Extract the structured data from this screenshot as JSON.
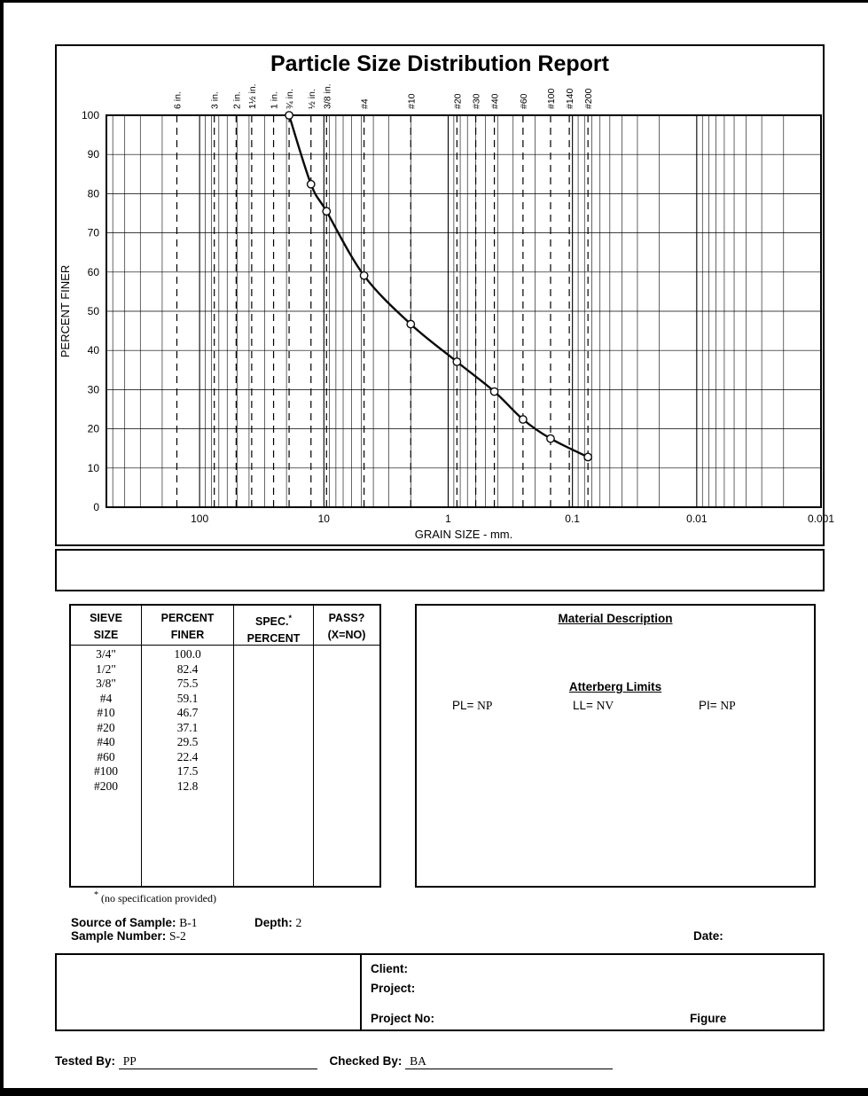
{
  "title": "Particle Size Distribution Report",
  "chart_data": {
    "type": "line",
    "title": "Particle Size Distribution Report",
    "xlabel": "GRAIN SIZE - mm.",
    "ylabel": "PERCENT FINER",
    "x_scale": "log",
    "x_log_range_left_to_right": [
      2.75,
      -3
    ],
    "x_tick_values": [
      100,
      10,
      1,
      0.1,
      0.01,
      0.001
    ],
    "x_tick_labels": [
      "100",
      "10",
      "1",
      "0.1",
      "0.01",
      "0.001"
    ],
    "y_ticks": [
      0,
      10,
      20,
      30,
      40,
      50,
      60,
      70,
      80,
      90,
      100
    ],
    "ylim": [
      0,
      100
    ],
    "grid": true,
    "marker": "open-circle",
    "line_color": "#000000",
    "sieve_lines": [
      {
        "label": "6 in.",
        "mm": 152.4
      },
      {
        "label": "3 in.",
        "mm": 76.2
      },
      {
        "label": "2 in.",
        "mm": 50.8
      },
      {
        "label": "1½ in.",
        "mm": 38.1
      },
      {
        "label": "1 in.",
        "mm": 25.4
      },
      {
        "label": "¾ in.",
        "mm": 19.05
      },
      {
        "label": "½ in.",
        "mm": 12.7
      },
      {
        "label": "3/8 in.",
        "mm": 9.525
      },
      {
        "label": "#4",
        "mm": 4.75
      },
      {
        "label": "#10",
        "mm": 2.0
      },
      {
        "label": "#20",
        "mm": 0.85
      },
      {
        "label": "#30",
        "mm": 0.6
      },
      {
        "label": "#40",
        "mm": 0.425
      },
      {
        "label": "#60",
        "mm": 0.25
      },
      {
        "label": "#100",
        "mm": 0.15
      },
      {
        "label": "#140",
        "mm": 0.106
      },
      {
        "label": "#200",
        "mm": 0.075
      }
    ],
    "points": [
      {
        "sieve": "3/4\"",
        "mm": 19.05,
        "percent_finer": 100.0
      },
      {
        "sieve": "1/2\"",
        "mm": 12.7,
        "percent_finer": 82.4
      },
      {
        "sieve": "3/8\"",
        "mm": 9.525,
        "percent_finer": 75.5
      },
      {
        "sieve": "#4",
        "mm": 4.75,
        "percent_finer": 59.1
      },
      {
        "sieve": "#10",
        "mm": 2.0,
        "percent_finer": 46.7
      },
      {
        "sieve": "#20",
        "mm": 0.85,
        "percent_finer": 37.1
      },
      {
        "sieve": "#40",
        "mm": 0.425,
        "percent_finer": 29.5
      },
      {
        "sieve": "#60",
        "mm": 0.25,
        "percent_finer": 22.4
      },
      {
        "sieve": "#100",
        "mm": 0.15,
        "percent_finer": 17.5
      },
      {
        "sieve": "#200",
        "mm": 0.075,
        "percent_finer": 12.8
      }
    ]
  },
  "sieve_table": {
    "headers": [
      {
        "line1": "SIEVE",
        "line2": "SIZE"
      },
      {
        "line1": "PERCENT",
        "line2": "FINER"
      },
      {
        "line1": "SPEC.",
        "sup": "*",
        "line2": "PERCENT"
      },
      {
        "line1": "PASS?",
        "line2": "(X=NO)"
      }
    ],
    "rows": [
      {
        "size": "3/4\"",
        "percent_finer": "100.0",
        "spec_percent": "",
        "pass": ""
      },
      {
        "size": "1/2\"",
        "percent_finer": "82.4",
        "spec_percent": "",
        "pass": ""
      },
      {
        "size": "3/8\"",
        "percent_finer": "75.5",
        "spec_percent": "",
        "pass": ""
      },
      {
        "size": "#4",
        "percent_finer": "59.1",
        "spec_percent": "",
        "pass": ""
      },
      {
        "size": "#10",
        "percent_finer": "46.7",
        "spec_percent": "",
        "pass": ""
      },
      {
        "size": "#20",
        "percent_finer": "37.1",
        "spec_percent": "",
        "pass": ""
      },
      {
        "size": "#40",
        "percent_finer": "29.5",
        "spec_percent": "",
        "pass": ""
      },
      {
        "size": "#60",
        "percent_finer": "22.4",
        "spec_percent": "",
        "pass": ""
      },
      {
        "size": "#100",
        "percent_finer": "17.5",
        "spec_percent": "",
        "pass": ""
      },
      {
        "size": "#200",
        "percent_finer": "12.8",
        "spec_percent": "",
        "pass": ""
      }
    ],
    "footnote_marker": "*",
    "footnote_text": "(no specification provided)"
  },
  "material": {
    "title": "Material Description",
    "atterberg_title": "Atterberg Limits",
    "pl_label": "PL=",
    "pl_value": "NP",
    "ll_label": "LL=",
    "ll_value": "NV",
    "pi_label": "PI=",
    "pi_value": "NP"
  },
  "sample_info": {
    "source_label": "Source of Sample:",
    "source_value": "B-1",
    "depth_label": "Depth:",
    "depth_value": "2",
    "sample_number_label": "Sample Number:",
    "sample_number_value": "S-2",
    "date_label": "Date:"
  },
  "client_box": {
    "client_label": "Client:",
    "project_label": "Project:",
    "project_no_label": "Project No:",
    "figure_label": "Figure"
  },
  "signatures": {
    "tested_by_label": "Tested By:",
    "tested_by_value": "PP",
    "checked_by_label": "Checked By:",
    "checked_by_value": "BA"
  }
}
